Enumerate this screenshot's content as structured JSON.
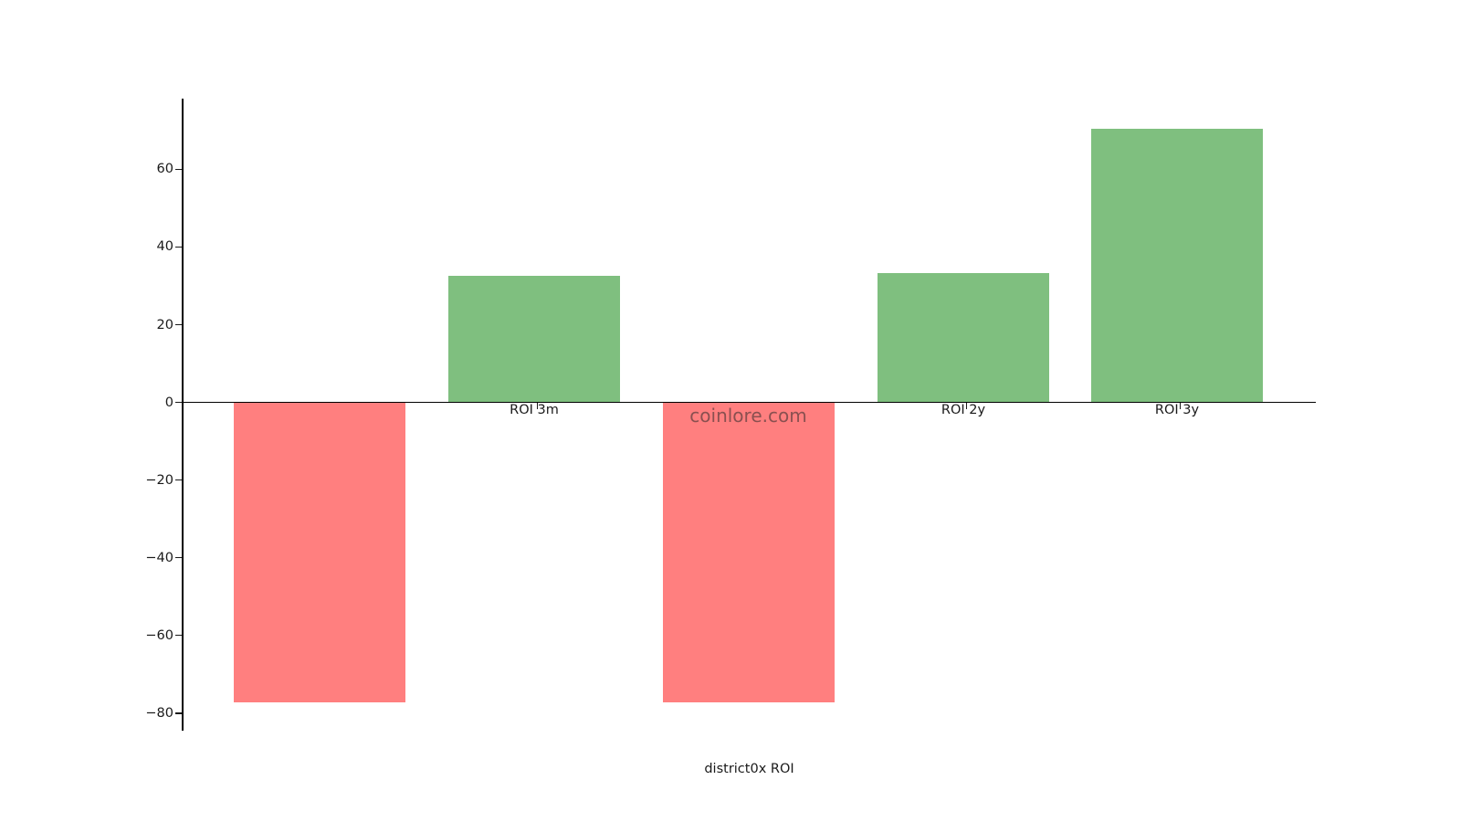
{
  "chart_data": {
    "type": "bar",
    "title": "",
    "xlabel": "district0x ROI",
    "ylabel": "",
    "categories": [
      "",
      "ROI 3m",
      "",
      "ROI 2y",
      "ROI 3y"
    ],
    "series": [
      {
        "name": "district0x ROI",
        "values": [
          -77.3,
          32.6,
          -77.3,
          33.2,
          70.5
        ]
      }
    ],
    "bar_colors": [
      "#ff7f7f",
      "#7fbf7f",
      "#ff7f7f",
      "#7fbf7f",
      "#7fbf7f"
    ],
    "yticks": [
      60,
      40,
      20,
      0,
      -20,
      -40,
      -60,
      -80
    ],
    "ylim": [
      -84.5,
      78.2
    ],
    "grid": false,
    "legend": "none",
    "watermark": "coinlore.com",
    "colors": {
      "positive_bar": "#7fbf7f",
      "negative_bar": "#ff7f7f",
      "axis": "#000000",
      "tick_text": "#1a1a1a",
      "watermark_text": "rgba(42,42,42,0.55)",
      "background": "#ffffff"
    }
  }
}
